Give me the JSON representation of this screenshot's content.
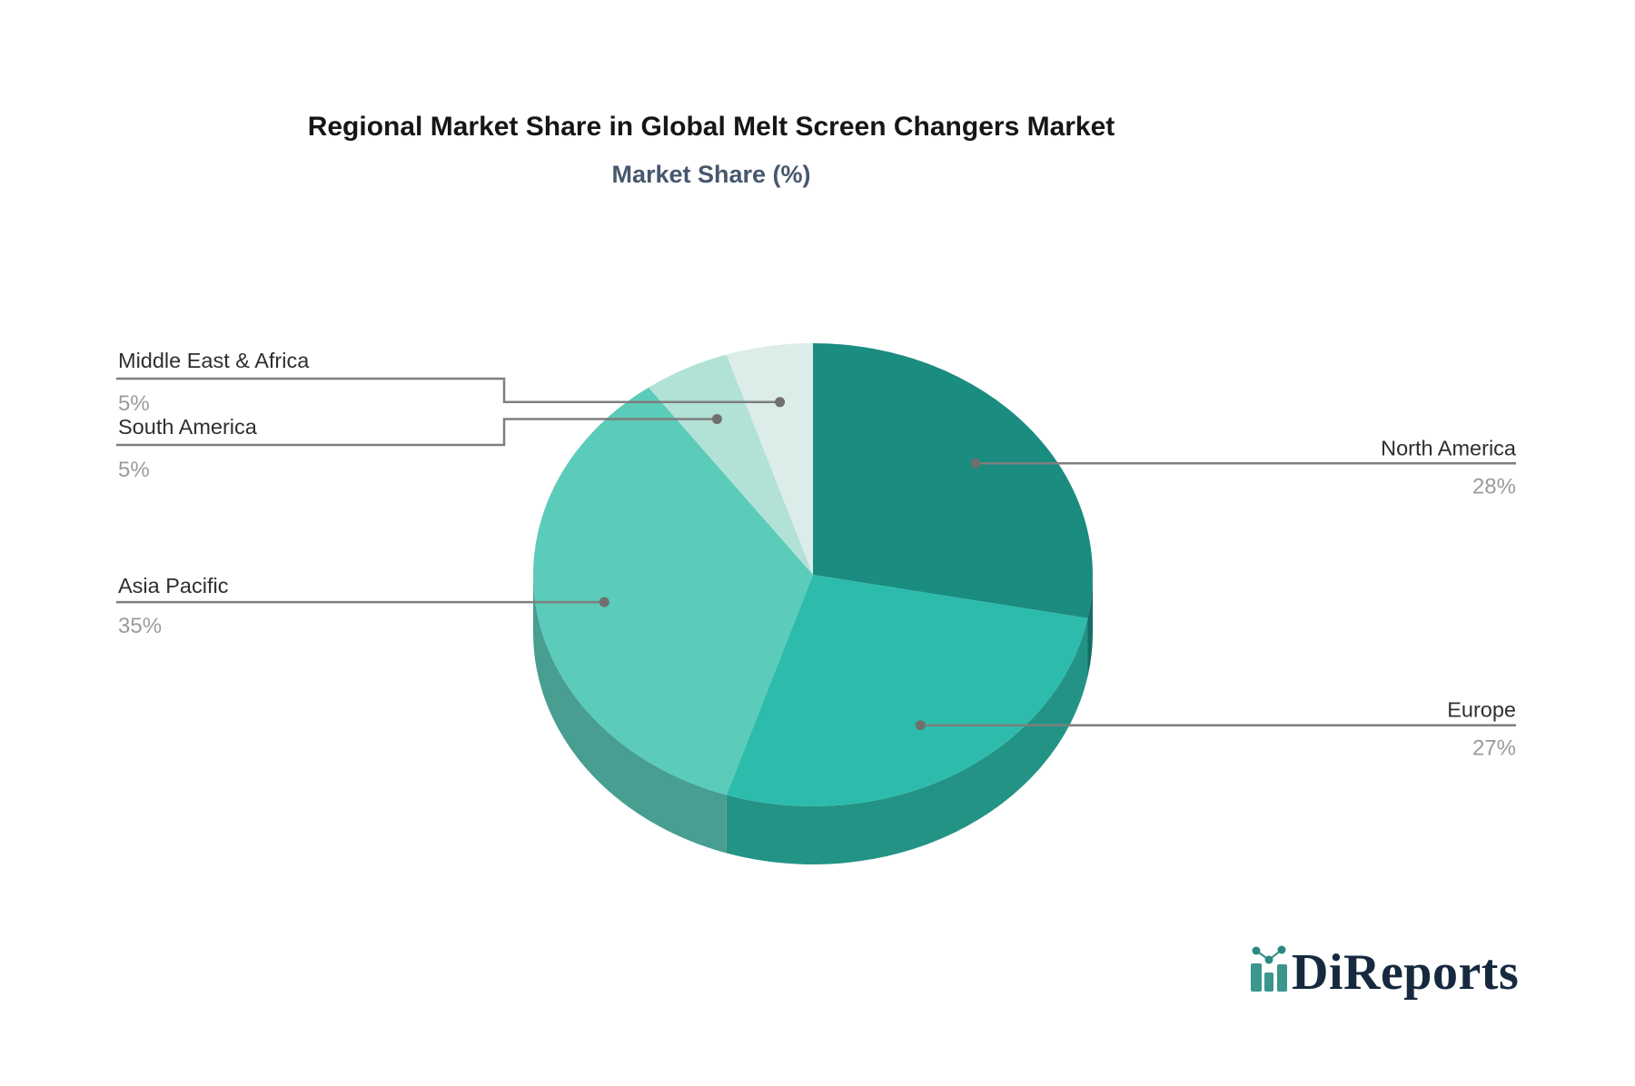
{
  "logo": {
    "text": "DiReports"
  },
  "chart_data": {
    "type": "pie",
    "title": "Regional Market Share in Global Melt Screen Changers Market",
    "subtitle": "Market Share (%)",
    "unit": "%",
    "direction": "clockwise",
    "start_angle_deg": 0,
    "legend": "none",
    "style": {
      "label_line_color": "#7e7e7e",
      "label_dot_color": "#6f6f6f",
      "label_text_color": "#2f2f2f",
      "value_text_color": "#9b9b9b",
      "background": "#ffffff"
    },
    "segments": [
      {
        "label": "North America",
        "value": 28,
        "display": "28%",
        "color": "#1a8c80",
        "label_side": "right"
      },
      {
        "label": "Europe",
        "value": 27,
        "display": "27%",
        "color": "#2dbcac",
        "label_side": "right"
      },
      {
        "label": "Asia Pacific",
        "value": 35,
        "display": "35%",
        "color": "#5bcbba",
        "label_side": "left"
      },
      {
        "label": "South America",
        "value": 5,
        "display": "5%",
        "color": "#b2e1d6",
        "label_side": "left-elbow"
      },
      {
        "label": "Middle East & Africa",
        "value": 5,
        "display": "5%",
        "color": "#dcede9",
        "label_side": "left-elbow"
      }
    ]
  }
}
